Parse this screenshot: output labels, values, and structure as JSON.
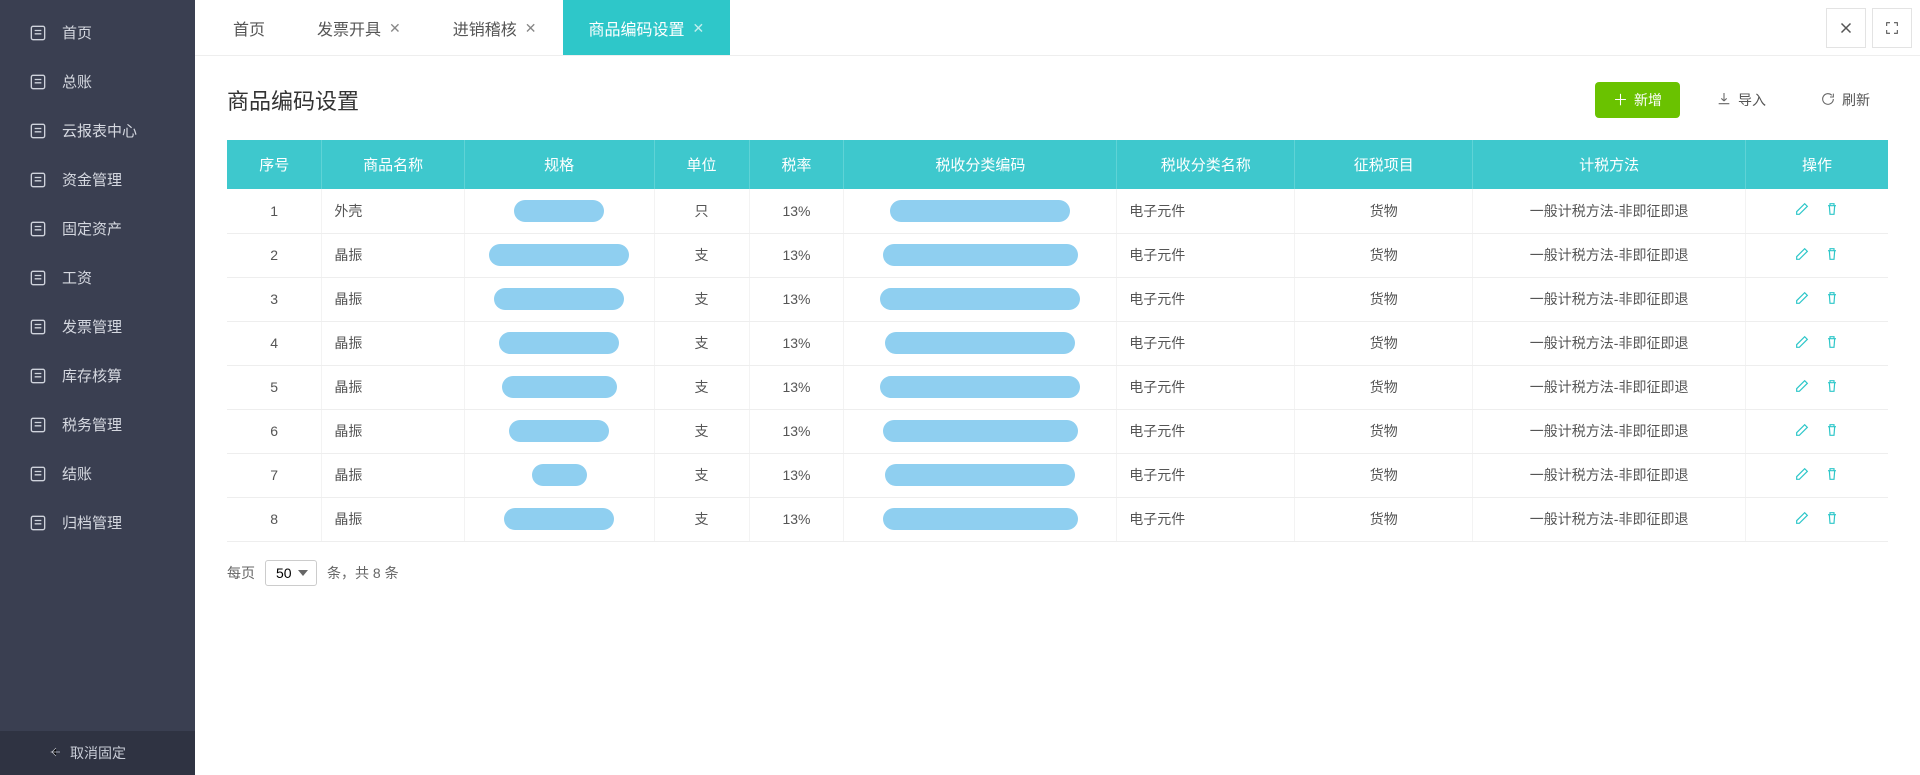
{
  "colors": {
    "sidebar_bg": "#3a3f51",
    "sidebar_text": "#d5d8e0",
    "accent": "#2ec7c9",
    "table_header_bg": "#3ec8cd",
    "primary_btn": "#6ac200",
    "redact_fill": "#8fcff0",
    "border": "#eeeeee"
  },
  "sidebar": {
    "items": [
      {
        "label": "首页",
        "icon": "home"
      },
      {
        "label": "总账",
        "icon": "ledger"
      },
      {
        "label": "云报表中心",
        "icon": "report"
      },
      {
        "label": "资金管理",
        "icon": "fund"
      },
      {
        "label": "固定资产",
        "icon": "asset"
      },
      {
        "label": "工资",
        "icon": "salary"
      },
      {
        "label": "发票管理",
        "icon": "invoice"
      },
      {
        "label": "库存核算",
        "icon": "stock"
      },
      {
        "label": "税务管理",
        "icon": "tax"
      },
      {
        "label": "结账",
        "icon": "close-book"
      },
      {
        "label": "归档管理",
        "icon": "archive"
      }
    ],
    "footer_label": "取消固定"
  },
  "tabs": [
    {
      "label": "首页",
      "closable": false,
      "active": false
    },
    {
      "label": "发票开具",
      "closable": true,
      "active": false
    },
    {
      "label": "进销稽核",
      "closable": true,
      "active": false
    },
    {
      "label": "商品编码设置",
      "closable": true,
      "active": true
    }
  ],
  "page": {
    "title": "商品编码设置",
    "btn_add": "新增",
    "btn_import": "导入",
    "btn_refresh": "刷新"
  },
  "table": {
    "columns": [
      {
        "key": "seq",
        "label": "序号",
        "class": "col-seq"
      },
      {
        "key": "name",
        "label": "商品名称",
        "class": "col-name"
      },
      {
        "key": "spec",
        "label": "规格",
        "class": "col-spec"
      },
      {
        "key": "unit",
        "label": "单位",
        "class": "col-unit"
      },
      {
        "key": "rate",
        "label": "税率",
        "class": "col-rate"
      },
      {
        "key": "code",
        "label": "税收分类编码",
        "class": "col-code"
      },
      {
        "key": "cname",
        "label": "税收分类名称",
        "class": "col-cname"
      },
      {
        "key": "tax",
        "label": "征税项目",
        "class": "col-tax"
      },
      {
        "key": "method",
        "label": "计税方法",
        "class": "col-method"
      },
      {
        "key": "op",
        "label": "操作",
        "class": "col-op"
      }
    ],
    "rows": [
      {
        "seq": "1",
        "name": "外壳",
        "spec_w": 90,
        "unit": "只",
        "rate": "13%",
        "code_w": 180,
        "cname": "电子元件",
        "tax": "货物",
        "method": "一般计税方法-非即征即退"
      },
      {
        "seq": "2",
        "name": "晶振",
        "spec_w": 140,
        "unit": "支",
        "rate": "13%",
        "code_w": 195,
        "cname": "电子元件",
        "tax": "货物",
        "method": "一般计税方法-非即征即退"
      },
      {
        "seq": "3",
        "name": "晶振",
        "spec_w": 130,
        "unit": "支",
        "rate": "13%",
        "code_w": 200,
        "cname": "电子元件",
        "tax": "货物",
        "method": "一般计税方法-非即征即退"
      },
      {
        "seq": "4",
        "name": "晶振",
        "spec_w": 120,
        "unit": "支",
        "rate": "13%",
        "code_w": 190,
        "cname": "电子元件",
        "tax": "货物",
        "method": "一般计税方法-非即征即退"
      },
      {
        "seq": "5",
        "name": "晶振",
        "spec_w": 115,
        "unit": "支",
        "rate": "13%",
        "code_w": 200,
        "cname": "电子元件",
        "tax": "货物",
        "method": "一般计税方法-非即征即退"
      },
      {
        "seq": "6",
        "name": "晶振",
        "spec_w": 100,
        "unit": "支",
        "rate": "13%",
        "code_w": 195,
        "cname": "电子元件",
        "tax": "货物",
        "method": "一般计税方法-非即征即退"
      },
      {
        "seq": "7",
        "name": "晶振",
        "spec_w": 55,
        "unit": "支",
        "rate": "13%",
        "code_w": 190,
        "cname": "电子元件",
        "tax": "货物",
        "method": "一般计税方法-非即征即退"
      },
      {
        "seq": "8",
        "name": "晶振",
        "spec_w": 110,
        "unit": "支",
        "rate": "13%",
        "code_w": 195,
        "cname": "电子元件",
        "tax": "货物",
        "method": "一般计税方法-非即征即退"
      }
    ]
  },
  "pager": {
    "per_page_label": "每页",
    "page_size": "50",
    "suffix_text": "条，共 8 条"
  }
}
